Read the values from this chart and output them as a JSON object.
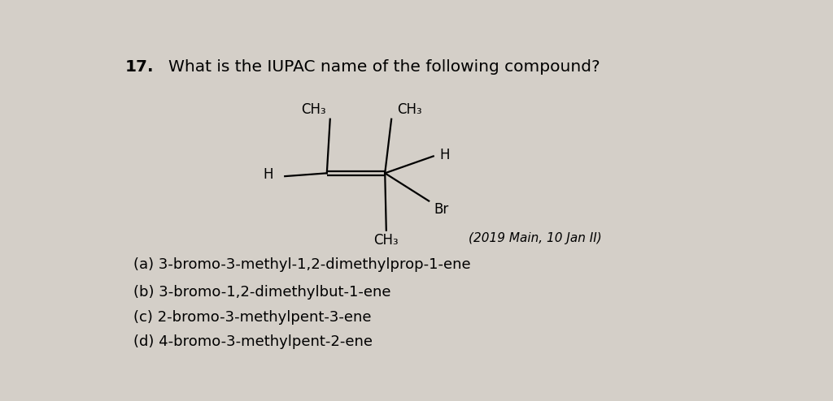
{
  "background_color": "#d4cfc8",
  "title_number": "17.",
  "title_text": "What is the IUPAC name of the following compound?",
  "title_fontsize": 14.5,
  "source_text": "(2019 Main, 10 Jan II)",
  "source_fontsize": 11,
  "options": [
    "(a) 3-bromo-3-methyl-1,2-dimethylprop-1-ene",
    "(b) 3-bromo-1,2-dimethylbut-1-ene",
    "(c) 2-bromo-3-methylpent-3-ene",
    "(d) 4-bromo-3-methylpent-2-ene"
  ],
  "options_fontsize": 13,
  "c1x": 0.345,
  "c1y": 0.595,
  "c2x": 0.435,
  "c2y": 0.595,
  "bond_lw": 1.6,
  "label_fontsize": 12
}
